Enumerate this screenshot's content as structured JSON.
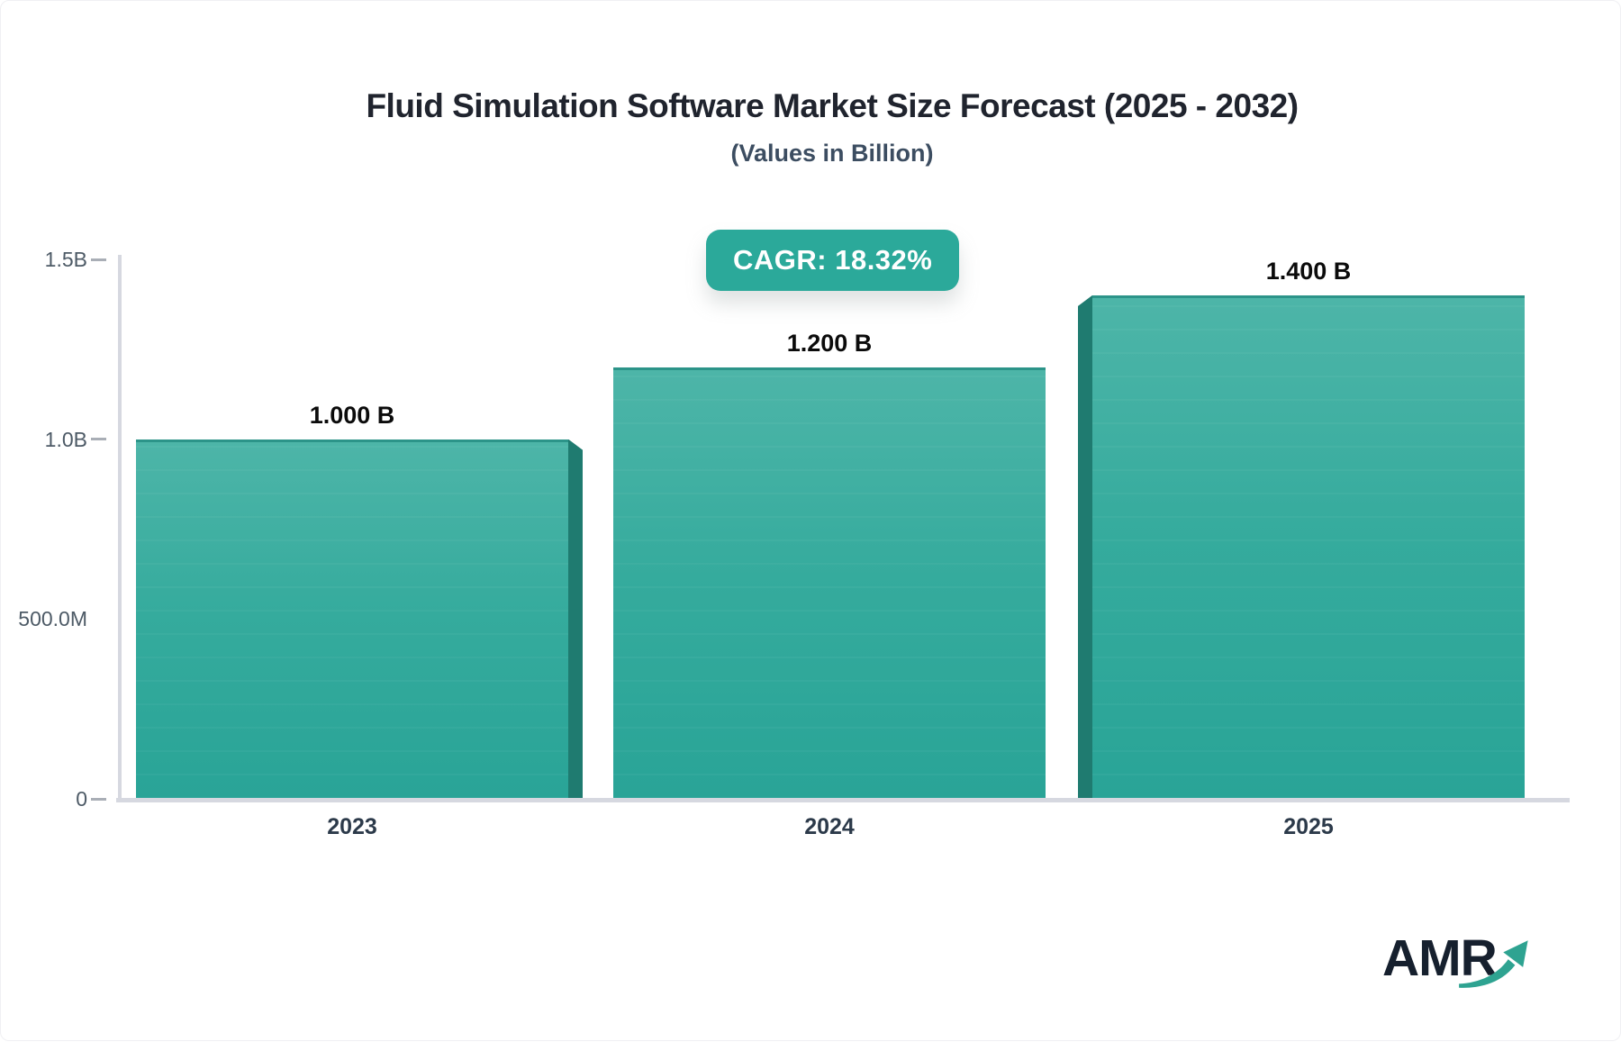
{
  "title": "Fluid Simulation Software Market Size Forecast (2025 - 2032)",
  "subtitle": "(Values in Billion)",
  "badge": {
    "label": "CAGR: 18.32%"
  },
  "logo": {
    "text": "AMR"
  },
  "colors": {
    "title": "#20242e",
    "subtitle": "#3c4d61",
    "badge_bg": "#2ba99a",
    "bar_top": "#4db5a8",
    "bar_bottom": "#29a497",
    "bar_side": "#1f7b70",
    "bar_top_edge": "#2c9489",
    "axis": "#d6d8e0",
    "tick_dash": "#a9aeb6",
    "tick_label": "#4d5a66",
    "value_label": "#0b0b0b",
    "category_label": "#2c3a4a",
    "logo_text": "#16202e",
    "logo_arrow": "#2ea391"
  },
  "chart_data": {
    "type": "bar",
    "title": "Fluid Simulation Software Market Size Forecast (2025 - 2032)",
    "subtitle": "(Values in Billion)",
    "categories": [
      "2023",
      "2024",
      "2025"
    ],
    "values": [
      1.0,
      1.2,
      1.4
    ],
    "value_labels": [
      "1.000 B",
      "1.200 B",
      "1.400 B"
    ],
    "cagr_annotation": "CAGR: 18.32%",
    "xlabel": "",
    "ylabel": "",
    "ylim": [
      0,
      1.5
    ],
    "grid": false,
    "legend": false,
    "yticks": [
      {
        "label": "1.5B",
        "value": 1.5,
        "dash": true
      },
      {
        "label": "1.0B",
        "value": 1.0,
        "dash": true
      },
      {
        "label": "500.0M",
        "value": 0.5,
        "dash": false
      },
      {
        "label": "0",
        "value": 0.0,
        "dash": true
      }
    ]
  }
}
